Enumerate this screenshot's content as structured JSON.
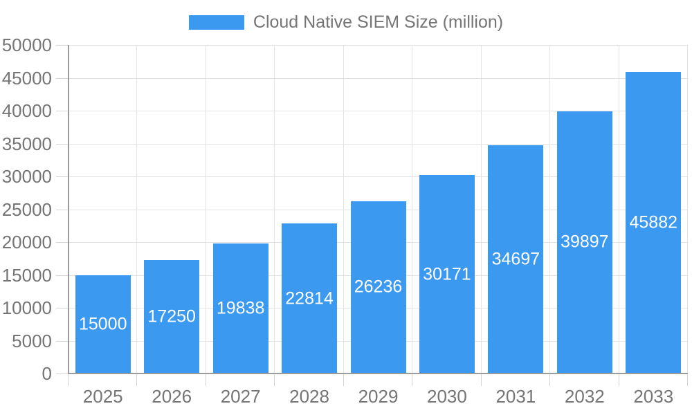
{
  "chart_data": {
    "type": "bar",
    "title": "Cloud Native SIEM Size (million)",
    "series_name": "Cloud Native SIEM Size (million)",
    "categories": [
      "2025",
      "2026",
      "2027",
      "2028",
      "2029",
      "2030",
      "2031",
      "2032",
      "2033"
    ],
    "values": [
      15000,
      17250,
      19838,
      22814,
      26236,
      30171,
      34697,
      39897,
      45882
    ],
    "xlabel": "",
    "ylabel": "",
    "ylim": [
      0,
      50000
    ],
    "ytick_step": 5000,
    "yticks": [
      0,
      5000,
      10000,
      15000,
      20000,
      25000,
      30000,
      35000,
      40000,
      45000,
      50000
    ],
    "value_label_position": "inside-bar-center",
    "grid": "horizontal-and-vertical",
    "legend_position": "top-center",
    "colors": {
      "bar": "#3C99F0",
      "bar_value_label": "#FFFFFF",
      "axis_text": "#757575",
      "legend_text": "#757575",
      "grid_line": "#E3E3E3",
      "tick_line": "#D4D4D4",
      "axis_line": "#9B9B9B",
      "background": "#FFFFFF"
    }
  }
}
